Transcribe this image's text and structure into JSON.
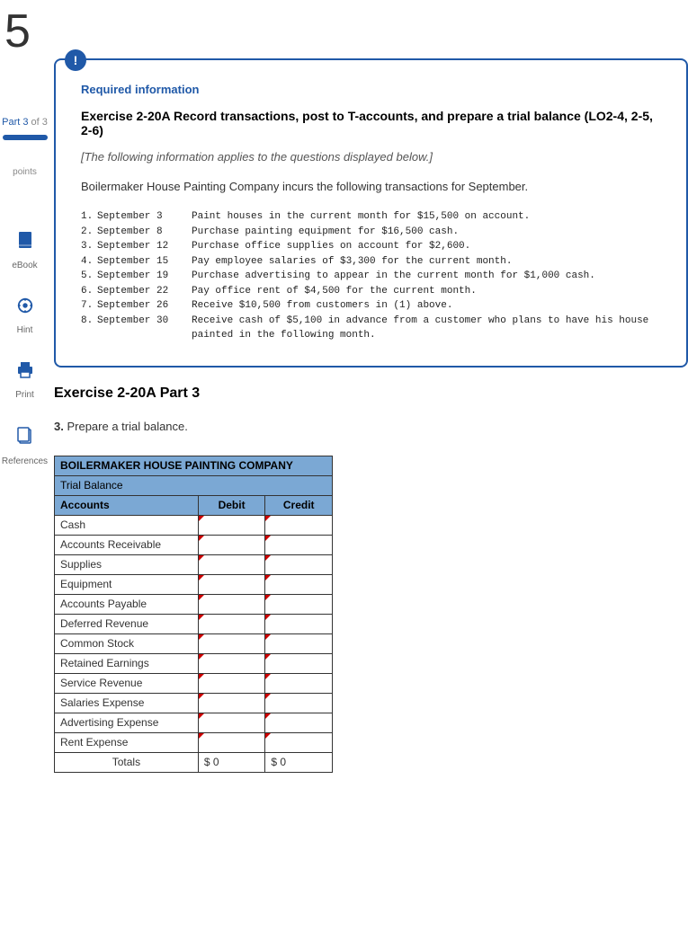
{
  "question": {
    "number": "5",
    "part_current": "Part 3",
    "part_of": "of 3",
    "points_label": "points"
  },
  "sidebar": {
    "ebook": "eBook",
    "hint": "Hint",
    "print": "Print",
    "references": "References"
  },
  "infobox": {
    "required_label": "Required information",
    "title": "Exercise 2-20A Record transactions, post to T-accounts, and prepare a trial balance (LO2-4, 2-5, 2-6)",
    "note": "[The following information applies to the questions displayed below.]",
    "intro": "Boilermaker House Painting Company incurs the following transactions for September.",
    "transactions": [
      {
        "num": "1.",
        "date": "September  3",
        "desc": "Paint houses in the current month for $15,500 on account."
      },
      {
        "num": "2.",
        "date": "September  8",
        "desc": "Purchase painting equipment for $16,500 cash."
      },
      {
        "num": "3.",
        "date": "September 12",
        "desc": "Purchase office supplies on account for $2,600."
      },
      {
        "num": "4.",
        "date": "September 15",
        "desc": "Pay employee salaries of $3,300 for the current month."
      },
      {
        "num": "5.",
        "date": "September 19",
        "desc": "Purchase advertising to appear in the current month for $1,000 cash."
      },
      {
        "num": "6.",
        "date": "September 22",
        "desc": "Pay office rent of $4,500 for the current month."
      },
      {
        "num": "7.",
        "date": "September 26",
        "desc": "Receive $10,500 from customers in (1) above."
      },
      {
        "num": "8.",
        "date": "September 30",
        "desc": "Receive cash of $5,100 in advance from a customer who plans to have his house painted in the following month."
      }
    ]
  },
  "part": {
    "section_title": "Exercise 2-20A Part 3",
    "instruction_num": "3.",
    "instruction_text": "Prepare a trial balance."
  },
  "trial_balance": {
    "company": "BOILERMAKER HOUSE PAINTING COMPANY",
    "title": "Trial Balance",
    "col_accounts": "Accounts",
    "col_debit": "Debit",
    "col_credit": "Credit",
    "header_bg": "#7ba8d4",
    "border_color": "#333333",
    "triangle_color": "#cc0000",
    "accounts": [
      "Cash",
      "Accounts Receivable",
      "Supplies",
      "Equipment",
      "Accounts Payable",
      "Deferred Revenue",
      "Common Stock",
      "Retained Earnings",
      "Service Revenue",
      "Salaries Expense",
      "Advertising Expense",
      "Rent Expense"
    ],
    "totals_label": "Totals",
    "totals_debit": "$          0",
    "totals_credit": "$          0"
  }
}
